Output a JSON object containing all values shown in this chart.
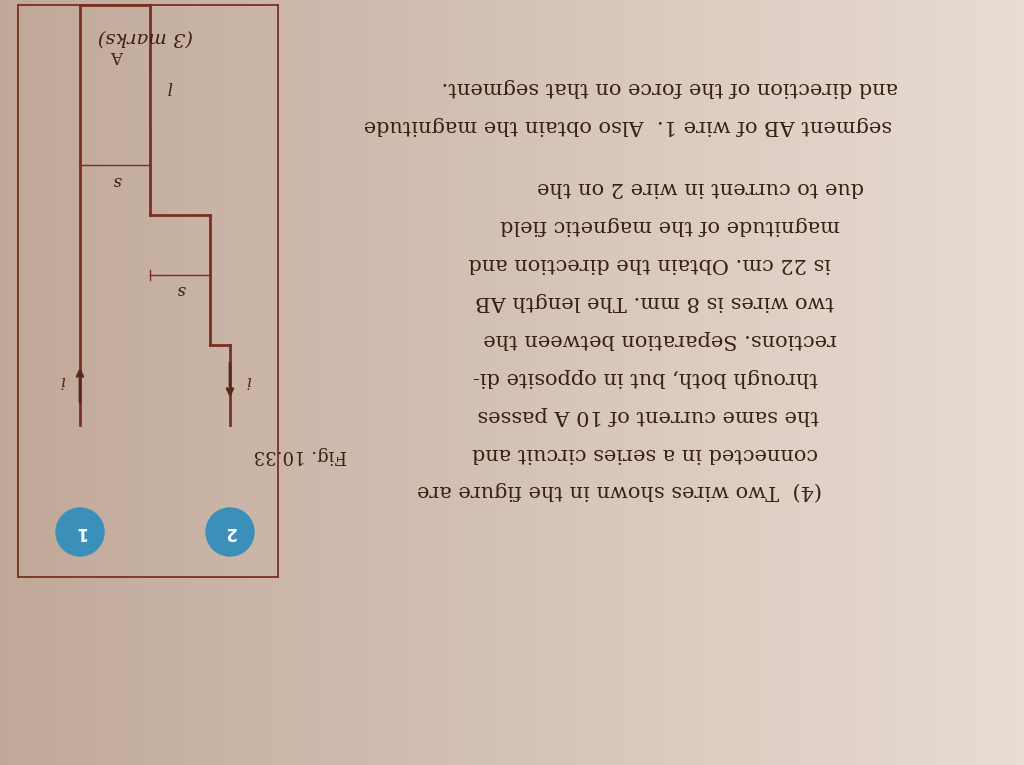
{
  "bg_color_left": "#c0a898",
  "bg_color_right": "#ddd0c8",
  "text_color": "#3a2010",
  "wire_color": "#7a3020",
  "circle_color": "#3a90b8",
  "arrow_color": "#5a2818",
  "title": "(3 marks)",
  "fig_label": "Fig. 10.33",
  "lines": [
    "and direction of the force on that segment.",
    "segment AB of wire 1.  Also obtain the magnitude",
    "due to current in wire 2 on the",
    "magnitude of the magnetic field",
    "is 22 cm. Obtain the direction and",
    "two wires is 8 mm. The length AB",
    "rections. Separation between the",
    "through both, but in opposite di-",
    "the same current of 10 A passes",
    "connected in a series circuit and",
    "(4)  Two wires shown in the figure are"
  ],
  "font_size": 15,
  "title_font_size": 14
}
